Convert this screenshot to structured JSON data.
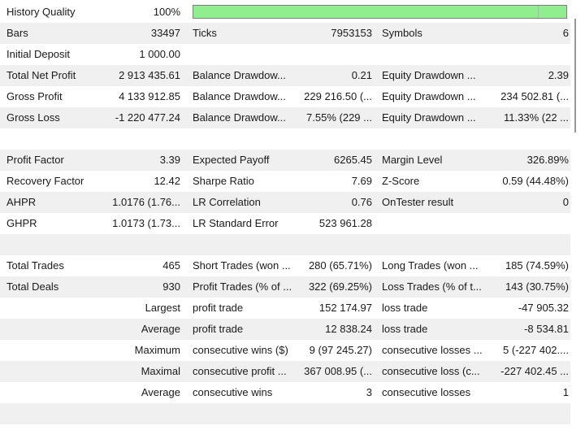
{
  "report": {
    "colors": {
      "stripe": "#f0f0f0",
      "background": "#ffffff",
      "text": "#1a1a1a",
      "bar_fill": "#90ee90",
      "bar_border": "#7f7f7f",
      "scrollbar": "#999999"
    },
    "history_quality_bar": {
      "percent_label": "100%",
      "fill_ratio": 1.0,
      "divider_offset_ratio": 0.924
    },
    "rows": [
      {
        "c1l": "History Quality",
        "c1v": "100%",
        "bar": true
      },
      {
        "c1l": "Bars",
        "c1v": "33497",
        "c2l": "Ticks",
        "c2v": "7953153",
        "c3l": "Symbols",
        "c3v": "6"
      },
      {
        "c1l": "Initial Deposit",
        "c1v": "1 000.00"
      },
      {
        "c1l": "Total Net Profit",
        "c1v": "2 913 435.61",
        "c2l": "Balance Drawdow...",
        "c2v": "0.21",
        "c3l": "Equity Drawdown ...",
        "c3v": "2.39"
      },
      {
        "c1l": "Gross Profit",
        "c1v": "4 133 912.85",
        "c2l": "Balance Drawdow...",
        "c2v": "229 216.50 (...",
        "c3l": "Equity Drawdown ...",
        "c3v": "234 502.81 (..."
      },
      {
        "c1l": "Gross Loss",
        "c1v": "-1 220 477.24",
        "c2l": "Balance Drawdow...",
        "c2v": "7.55% (229 ...",
        "c3l": "Equity Drawdown ...",
        "c3v": "11.33% (22 ..."
      },
      {},
      {
        "c1l": "Profit Factor",
        "c1v": "3.39",
        "c2l": "Expected Payoff",
        "c2v": "6265.45",
        "c3l": "Margin Level",
        "c3v": "326.89%"
      },
      {
        "c1l": "Recovery Factor",
        "c1v": "12.42",
        "c2l": "Sharpe Ratio",
        "c2v": "7.69",
        "c3l": "Z-Score",
        "c3v": "0.59 (44.48%)"
      },
      {
        "c1l": "AHPR",
        "c1v": "1.0176 (1.76...",
        "c2l": "LR Correlation",
        "c2v": "0.76",
        "c3l": "OnTester result",
        "c3v": "0"
      },
      {
        "c1l": "GHPR",
        "c1v": "1.0173 (1.73...",
        "c2l": "LR Standard Error",
        "c2v": "523 961.28"
      },
      {},
      {
        "c1l": "Total Trades",
        "c1v": "465",
        "c2l": "Short Trades (won ...",
        "c2v": "280 (65.71%)",
        "c3l": "Long Trades (won ...",
        "c3v": "185 (74.59%)"
      },
      {
        "c1l": "Total Deals",
        "c1v": "930",
        "c2l": "Profit Trades (% of ...",
        "c2v": "322 (69.25%)",
        "c3l": "Loss Trades (% of t...",
        "c3v": "143 (30.75%)"
      },
      {
        "c1v": "Largest",
        "c2l": "profit trade",
        "c2v": "152 174.97",
        "c3l": "loss trade",
        "c3v": "-47 905.32"
      },
      {
        "c1v": "Average",
        "c2l": "profit trade",
        "c2v": "12 838.24",
        "c3l": "loss trade",
        "c3v": "-8 534.81"
      },
      {
        "c1v": "Maximum",
        "c2l": "consecutive wins ($)",
        "c2v": "9 (97 245.27)",
        "c3l": "consecutive losses ...",
        "c3v": "5 (-227 402...."
      },
      {
        "c1v": "Maximal",
        "c2l": "consecutive profit ...",
        "c2v": "367 008.95 (...",
        "c3l": "consecutive loss (c...",
        "c3v": "-227 402.45 ..."
      },
      {
        "c1v": "Average",
        "c2l": "consecutive wins",
        "c2v": "3",
        "c3l": "consecutive losses",
        "c3v": "1"
      },
      {}
    ]
  }
}
